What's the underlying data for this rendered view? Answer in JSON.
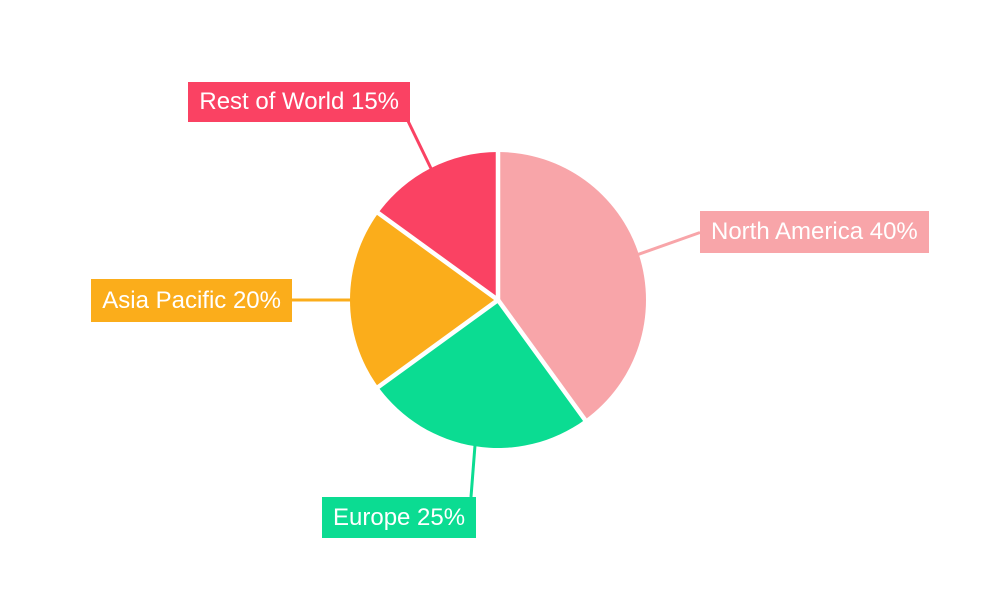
{
  "chart_data": {
    "type": "pie",
    "direction": "clockwise",
    "start_angle_deg": -90,
    "background": "#FFFFFF",
    "label_text_color": "#FFFFFF",
    "separator_color": "#FFFFFF",
    "slices": [
      {
        "name": "North America",
        "value": 40,
        "label": "North America 40%",
        "color": "#F8A5A9"
      },
      {
        "name": "Europe",
        "value": 25,
        "label": "Europe 25%",
        "color": "#0BDC92"
      },
      {
        "name": "Asia Pacific",
        "value": 20,
        "label": "Asia Pacific 20%",
        "color": "#FBAD1B"
      },
      {
        "name": "Rest of World",
        "value": 15,
        "label": "Rest of World 15%",
        "color": "#FA4263"
      }
    ]
  }
}
